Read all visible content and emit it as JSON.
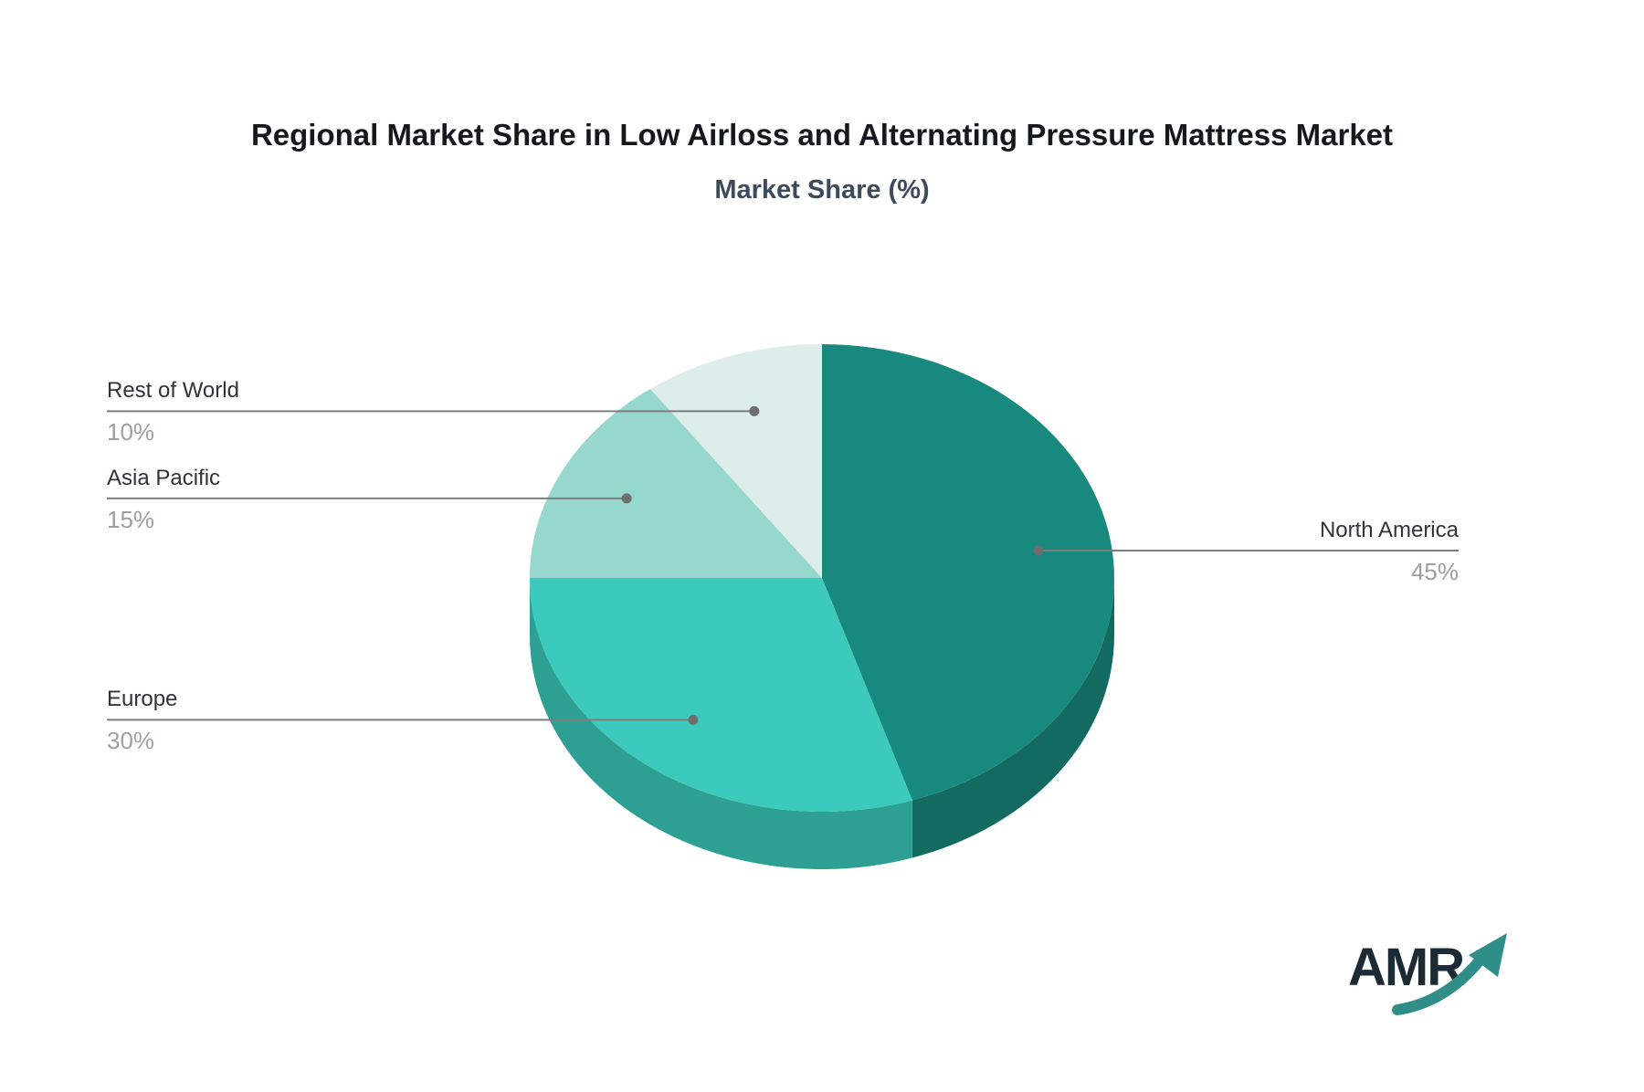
{
  "header": {
    "title": "Regional Market Share in Low Airloss and Alternating Pressure Mattress Market",
    "subtitle": "Market Share (%)"
  },
  "chart_data": {
    "type": "pie",
    "style": "3d",
    "title": "Regional Market Share in Low Airloss and Alternating Pressure Mattress Market",
    "subtitle": "Market Share (%)",
    "unit": "%",
    "direction": "clockwise",
    "start_angle_deg": 0,
    "labels": [
      "North America",
      "Europe",
      "Asia Pacific",
      "Rest of World"
    ],
    "values": [
      45,
      30,
      15,
      10
    ],
    "display_values": [
      "45%",
      "30%",
      "15%",
      "10%"
    ],
    "colors": [
      "#18897E",
      "#3BCABB",
      "#97D8CE",
      "#DDEDEA"
    ],
    "side_colors": [
      "#136A60",
      "#2DA093",
      "#6FBFB2",
      "#C2DBD6"
    ],
    "leader_line_color": "#7D7D7D",
    "leader_dot_color": "#6E6E6E",
    "label_text_color": "#2F3437",
    "value_text_color": "#9AA0A3",
    "legend_position": "none"
  },
  "logo": {
    "text": "AMR",
    "text_color": "#1B2A35",
    "arrow_color": "#2F8F88"
  }
}
